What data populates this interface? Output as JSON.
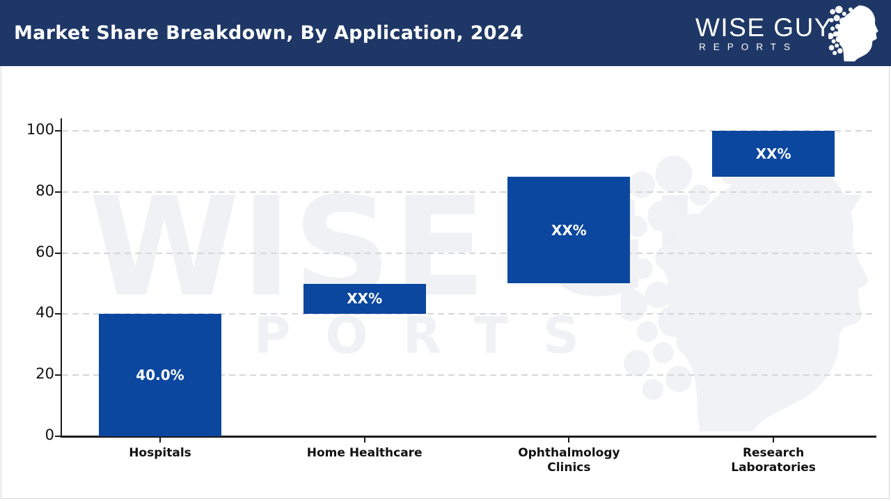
{
  "header": {
    "title": "Market Share Breakdown, By Application, 2024",
    "background_color": "#1e3766",
    "logo": {
      "line1": "WISE GUY",
      "line2": "REPORTS"
    }
  },
  "watermark": {
    "line1": "WISE GUY",
    "line2": "REPORTS"
  },
  "chart_data": {
    "type": "waterfall",
    "title": "Market Share Breakdown, By Application, 2024",
    "categories": [
      "Hospitals",
      "Home Healthcare",
      "Ophthalmology\nClinics",
      "Research\nLaboratories"
    ],
    "segments": [
      {
        "category": "Hospitals",
        "start": 0,
        "end": 40,
        "value": 40,
        "label": "40.0%"
      },
      {
        "category": "Home Healthcare",
        "start": 40,
        "end": 50,
        "value": 10,
        "label": "XX%"
      },
      {
        "category": "Ophthalmology Clinics",
        "start": 50,
        "end": 85,
        "value": 35,
        "label": "XX%"
      },
      {
        "category": "Research Laboratories",
        "start": 85,
        "end": 100,
        "value": 15,
        "label": "XX%"
      }
    ],
    "ylim": [
      0,
      100
    ],
    "yticks": [
      0,
      20,
      40,
      60,
      80,
      100
    ],
    "grid": "horizontal-dashed",
    "legend": "none",
    "bar_color": "#0c479f",
    "bar_label_color": "#ffffff",
    "axis_color": "#1a1a1a",
    "gridline_color": "#d6d6d6"
  }
}
